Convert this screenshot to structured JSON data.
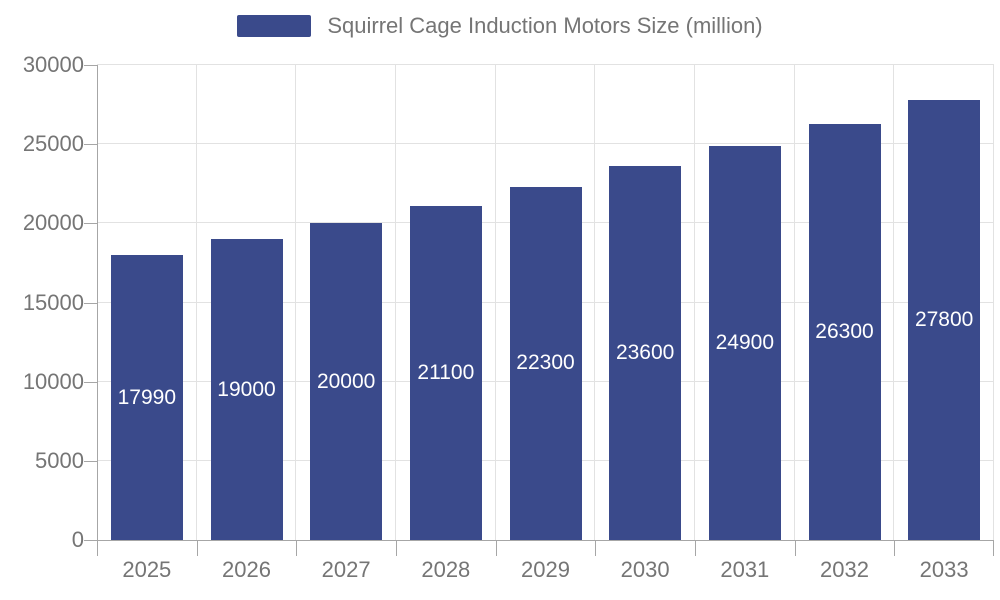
{
  "legend": {
    "label": "Squirrel Cage Induction Motors Size (million)"
  },
  "chart_data": {
    "type": "bar",
    "title": "Squirrel Cage Induction Motors Size (million)",
    "categories": [
      "2025",
      "2026",
      "2027",
      "2028",
      "2029",
      "2030",
      "2031",
      "2032",
      "2033"
    ],
    "series": [
      {
        "name": "Squirrel Cage Induction Motors Size (million)",
        "values": [
          17990,
          19000,
          20000,
          21100,
          22300,
          23600,
          24900,
          26300,
          27800
        ]
      }
    ],
    "xlabel": "",
    "ylabel": "",
    "ylim": [
      0,
      30000
    ],
    "yticks": [
      0,
      5000,
      10000,
      15000,
      20000,
      25000,
      30000
    ],
    "grid": true,
    "legend_position": "top-center",
    "bar_label_position": "inside-middle",
    "colors": {
      "bar": "#3A4A8B",
      "bar_label": "#FFFFFF",
      "axis": "#A6A6A6",
      "gridline": "#E2E2E2",
      "tick_text": "#757575",
      "legend_text": "#757575",
      "background": "#FFFFFF"
    }
  }
}
